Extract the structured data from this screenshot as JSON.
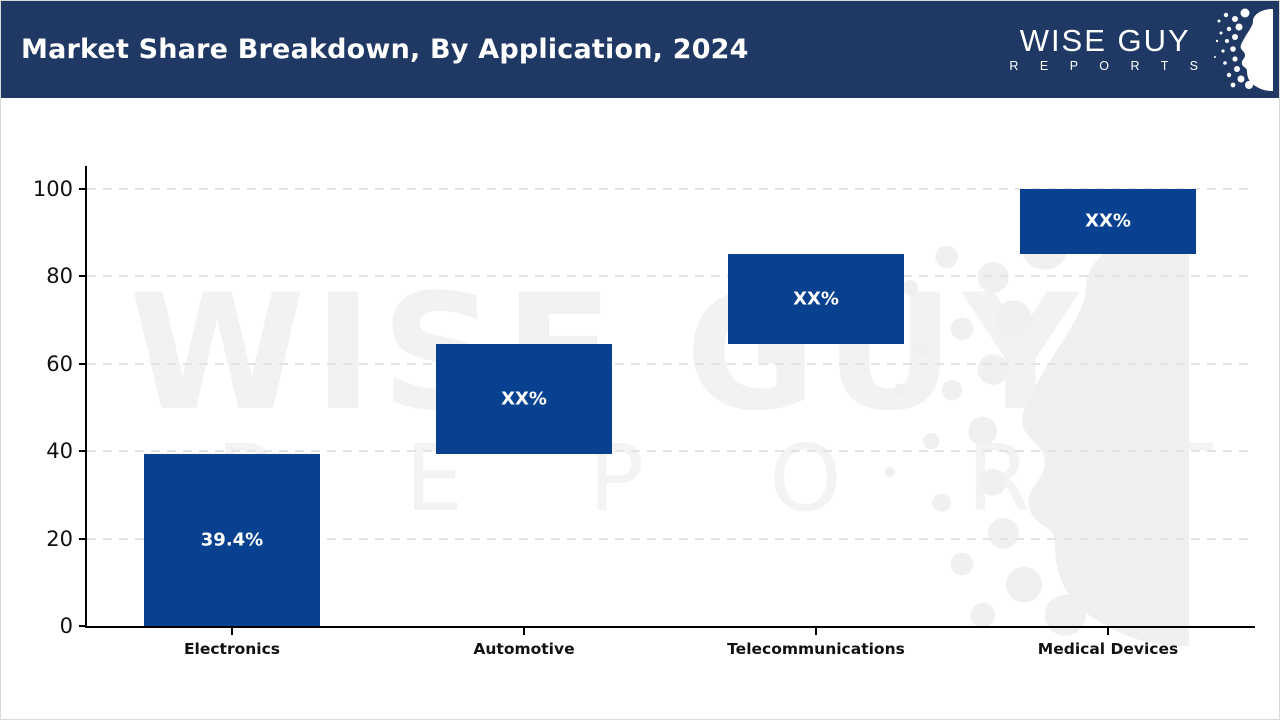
{
  "header": {
    "title": "Market Share Breakdown, By Application, 2024",
    "bg_color": "#1f3864",
    "logo": {
      "line1": "WISE GUY",
      "line2": "R E P O R T S"
    }
  },
  "watermark": {
    "line1": "WISE GUY",
    "line2": "R E P O R T S"
  },
  "chart_data": {
    "type": "bar",
    "variant": "waterfall",
    "title": "Market Share Breakdown, By Application, 2024",
    "categories": [
      "Electronics",
      "Automotive",
      "Telecommunications",
      "Medical Devices"
    ],
    "segments": [
      {
        "category": "Electronics",
        "start": 0,
        "end": 39.4,
        "label": "39.4%"
      },
      {
        "category": "Automotive",
        "start": 39.4,
        "end": 64.5,
        "label": "XX%"
      },
      {
        "category": "Telecommunications",
        "start": 64.5,
        "end": 85,
        "label": "XX%"
      },
      {
        "category": "Medical Devices",
        "start": 85,
        "end": 100,
        "label": "XX%"
      }
    ],
    "xlabel": "",
    "ylabel": "",
    "yticks": [
      0,
      20,
      40,
      60,
      80,
      100
    ],
    "ylim": [
      0,
      105
    ],
    "grid": "horizontal-dashed",
    "legend": "none",
    "bar_color": "#07418f",
    "gridline_color": "#e3e3e3",
    "axis_color": "#000000"
  }
}
